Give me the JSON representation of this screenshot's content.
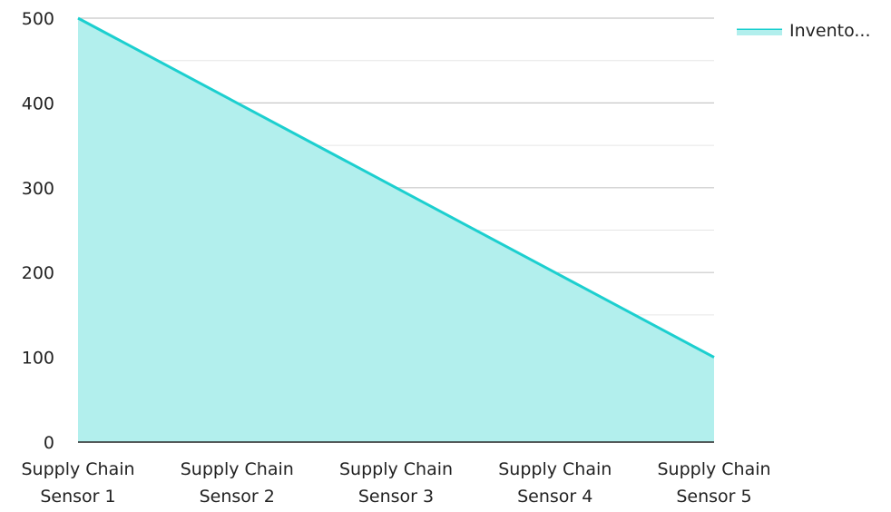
{
  "chart_data": {
    "type": "area",
    "title": "",
    "xlabel": "",
    "ylabel": "",
    "categories": [
      [
        "Supply Chain",
        "Sensor 1"
      ],
      [
        "Supply Chain",
        "Sensor 2"
      ],
      [
        "Supply Chain",
        "Sensor 3"
      ],
      [
        "Supply Chain",
        "Sensor 4"
      ],
      [
        "Supply Chain",
        "Sensor 5"
      ]
    ],
    "series": [
      {
        "name": "Invento...",
        "values": [
          500,
          400,
          300,
          200,
          100
        ],
        "line_color": "#1ccfcf",
        "fill_color": "#b2efed"
      }
    ],
    "ylim": [
      0,
      500
    ],
    "yticks": [
      0,
      100,
      200,
      300,
      400,
      500
    ],
    "grid": true,
    "grid_minor": true,
    "legend": "top-right"
  }
}
